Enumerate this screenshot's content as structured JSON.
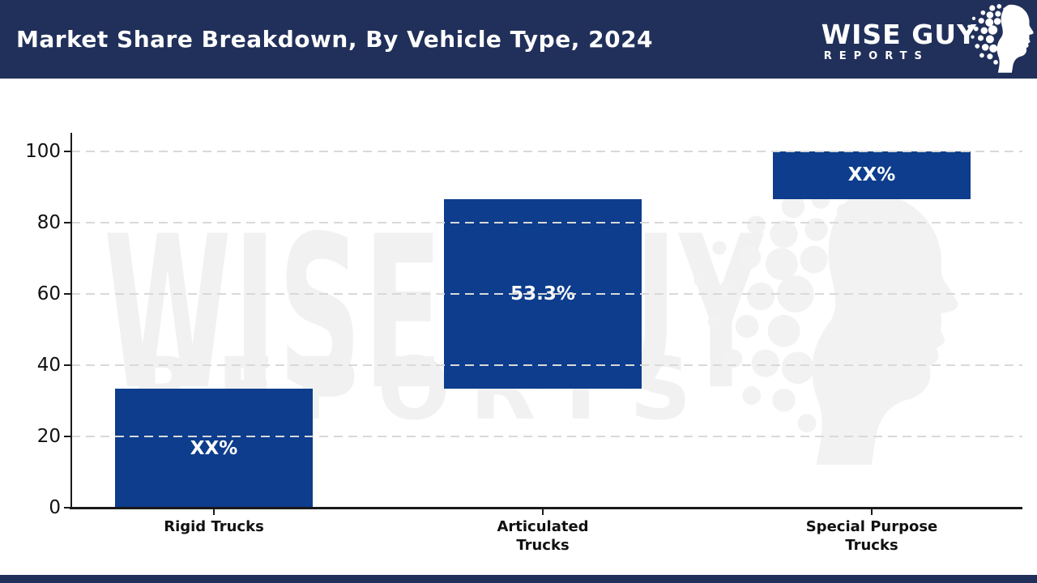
{
  "header": {
    "title": "Market Share Breakdown, By Vehicle Type, 2024",
    "logo": {
      "line1": "WISE GUY",
      "line2": "REPORTS"
    }
  },
  "watermark": {
    "line1": "WISE GUY",
    "line2": "REPORTS"
  },
  "colors": {
    "header_bg": "#21305a",
    "footer_bg": "#21305a",
    "bar": "#0d3d8c",
    "bar_label": "#ffffff",
    "grid": "#d9d9d9",
    "axis": "#1a1a1a",
    "watermark": "#f1f1f1",
    "watermark_face": "#f2f2f2"
  },
  "chart_data": {
    "type": "bar",
    "subtype": "waterfall",
    "title": "Market Share Breakdown, By Vehicle Type, 2024",
    "categories": [
      "Rigid Trucks",
      "Articulated Trucks",
      "Special Purpose Trucks"
    ],
    "series": [
      {
        "name": "Market Share",
        "segments": [
          {
            "category": "Rigid Trucks",
            "start": 0,
            "end": 33.4,
            "label": "XX%"
          },
          {
            "category": "Articulated Trucks",
            "start": 33.4,
            "end": 86.7,
            "label": "53.3%"
          },
          {
            "category": "Special Purpose Trucks",
            "start": 86.7,
            "end": 100,
            "label": "XX%"
          }
        ]
      }
    ],
    "xlabel": "",
    "ylabel": "",
    "ylim": [
      0,
      100
    ],
    "yticks": [
      0,
      20,
      40,
      60,
      80,
      100
    ],
    "grid": "horizontal-dashed",
    "legend": "none"
  }
}
